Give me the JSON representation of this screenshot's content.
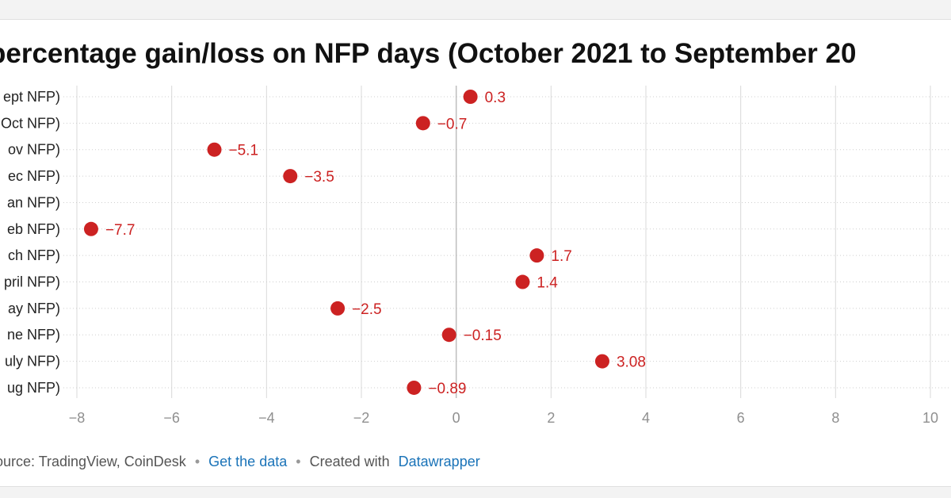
{
  "chart_data": {
    "type": "scatter",
    "title": "percentage gain/loss on NFP days (October 2021 to September 20",
    "categories": [
      "ept NFP)",
      "Oct NFP)",
      "ov NFP)",
      "ec NFP)",
      "an NFP)",
      "eb NFP)",
      "ch NFP)",
      "pril NFP)",
      "ay NFP)",
      "ne NFP)",
      "uly NFP)",
      "ug NFP)"
    ],
    "values": [
      0.3,
      -0.7,
      -5.1,
      -3.5,
      null,
      -7.7,
      1.7,
      1.4,
      -2.5,
      -0.15,
      3.08,
      -0.89
    ],
    "value_labels": [
      "0.3",
      "−0.7",
      "−5.1",
      "−3.5",
      "",
      "−7.7",
      "1.7",
      "1.4",
      "−2.5",
      "−0.15",
      "3.08",
      "−0.89"
    ],
    "xlim": [
      -8,
      10
    ],
    "xticks": [
      -8,
      -6,
      -4,
      -2,
      0,
      2,
      4,
      6,
      8,
      10
    ],
    "xtick_labels": [
      "−8",
      "−6",
      "−4",
      "−2",
      "0",
      "2",
      "4",
      "6",
      "8",
      "10"
    ],
    "xlabel": "",
    "ylabel": "",
    "grid": true,
    "colors": {
      "point": "#cc2222",
      "label": "#cc2222",
      "grid": "#d9d9d9",
      "zero_line": "#bdbdbd",
      "link": "#1a73b8"
    }
  },
  "footer": {
    "source": "Source: TradingView, CoinDesk",
    "separator": "•",
    "get_data": "Get the data",
    "created_with": "Created with",
    "datawrapper": "Datawrapper"
  }
}
